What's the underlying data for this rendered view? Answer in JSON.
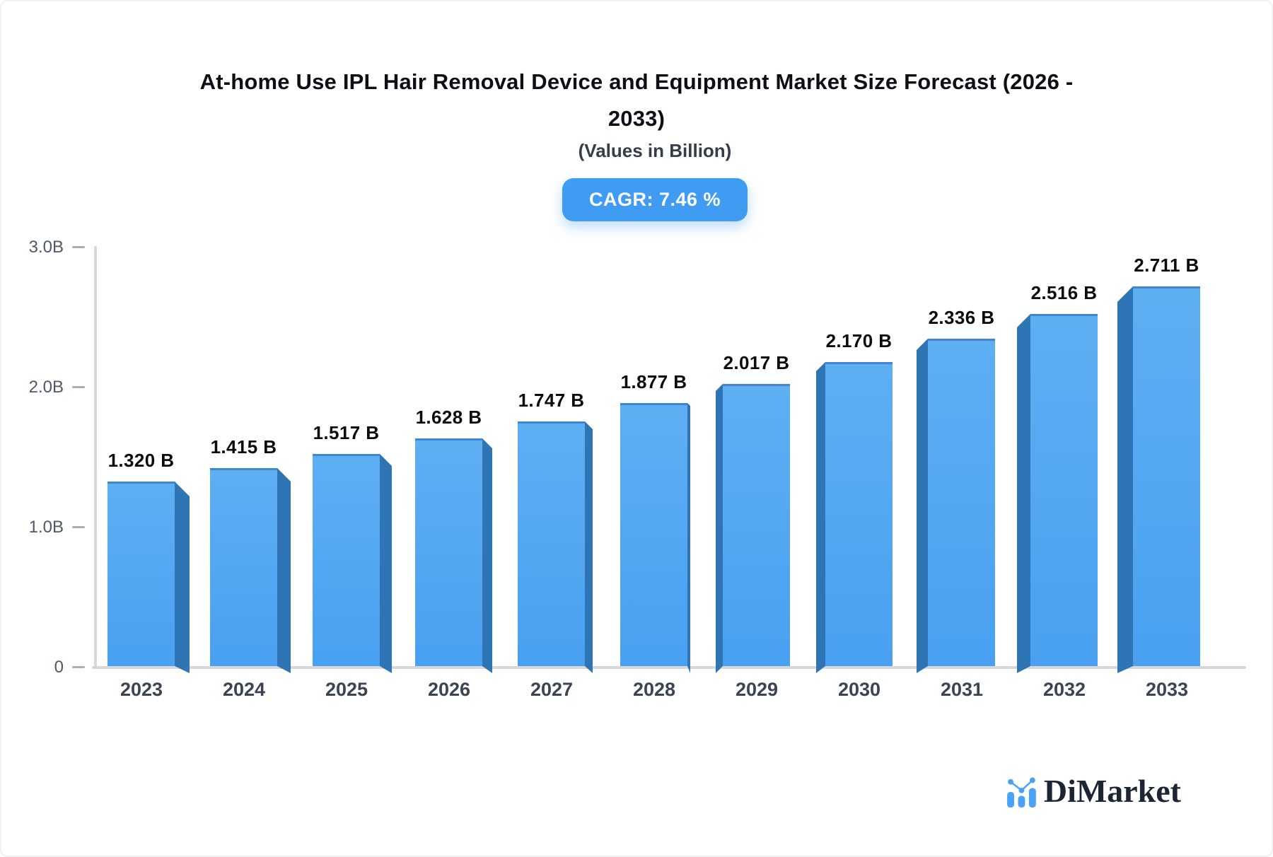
{
  "header": {
    "title_line1": "At-home Use IPL Hair Removal Device and Equipment Market Size Forecast (2026 -",
    "title_line2": "2033)",
    "subtitle": "(Values in Billion)",
    "cagr_label": "CAGR: 7.46 %"
  },
  "chart_data": {
    "type": "bar",
    "title": "At-home Use IPL Hair Removal Device and Equipment Market Size Forecast (2026 - 2033)",
    "subtitle": "(Values in Billion)",
    "cagr_percent": 7.46,
    "values_unit": "Billion",
    "categories": [
      "2023",
      "2024",
      "2025",
      "2026",
      "2027",
      "2028",
      "2029",
      "2030",
      "2031",
      "2032",
      "2033"
    ],
    "values": [
      1.32,
      1.415,
      1.517,
      1.628,
      1.747,
      1.877,
      2.017,
      2.17,
      2.336,
      2.516,
      2.711
    ],
    "value_labels": [
      "1.320 B",
      "1.415 B",
      "1.517 B",
      "1.628 B",
      "1.747 B",
      "1.877 B",
      "2.017 B",
      "2.170 B",
      "2.336 B",
      "2.516 B",
      "2.711 B"
    ],
    "xlabel": "",
    "ylabel": "",
    "ylim": [
      0,
      3
    ],
    "yticks": [
      {
        "label": "0",
        "value": 0
      },
      {
        "label": "1.0B",
        "value": 1
      },
      {
        "label": "2.0B",
        "value": 2
      },
      {
        "label": "3.0B",
        "value": 3
      }
    ],
    "grid": false,
    "legend": false
  },
  "footer": {
    "brand": "DiMarket"
  },
  "colors": {
    "badge_bg": "#409bf3",
    "bar_face_top": "#5eaef2",
    "bar_face_bottom": "#49a0f1",
    "bar_top_edge": "#3e87cc",
    "bar_side": "#2f74b5",
    "axis_line": "#d6d8db",
    "tick_dash": "#a9aeb6",
    "ytick_label": "#4e5866",
    "year_label": "#3a4452",
    "value_label": "#0a0c10",
    "title": "#0c0f14",
    "subtitle": "#343e4a",
    "logo_icon": "#4aa2f6",
    "logo_text": "#1b2533"
  }
}
